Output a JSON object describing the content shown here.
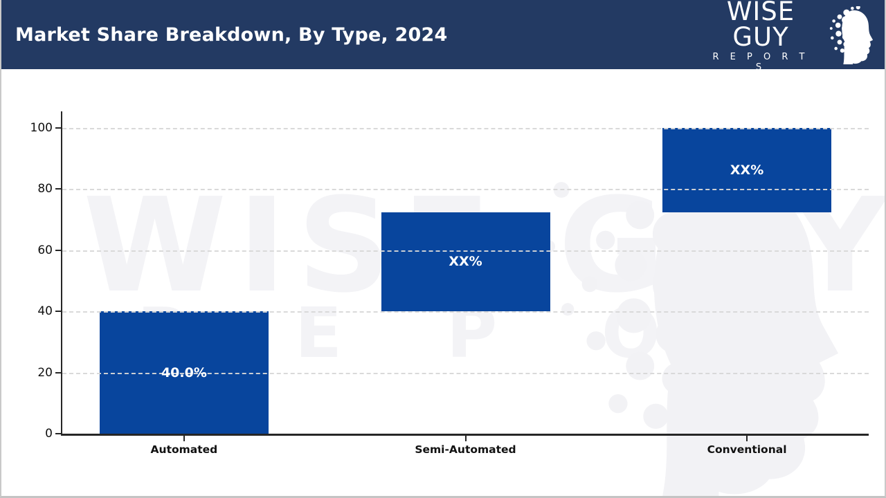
{
  "header": {
    "title": "Market Share Breakdown, By Type, 2024"
  },
  "logo": {
    "line1": "WISE GUY",
    "line2": "R E P O R T S"
  },
  "watermark": {
    "line1": "WISE GUY",
    "line2": "R E P O R T S"
  },
  "chart_data": {
    "type": "bar",
    "subtype": "waterfall",
    "title": "Market Share Breakdown, By Type, 2024",
    "categories": [
      "Automated",
      "Semi-Automated",
      "Conventional"
    ],
    "segments": [
      {
        "category": "Automated",
        "from": 0,
        "to": 40,
        "label": "40.0%"
      },
      {
        "category": "Semi-Automated",
        "from": 40,
        "to": 72.5,
        "label": "XX%"
      },
      {
        "category": "Conventional",
        "from": 72.5,
        "to": 100,
        "label": "XX%"
      }
    ],
    "yticks": [
      0,
      20,
      40,
      60,
      80,
      100
    ],
    "ylim": [
      0,
      105
    ],
    "bar_color": "#08459d",
    "value_label_color": "#ffffff",
    "grid": "horizontal-dashed",
    "xlabel": "",
    "ylabel": ""
  }
}
